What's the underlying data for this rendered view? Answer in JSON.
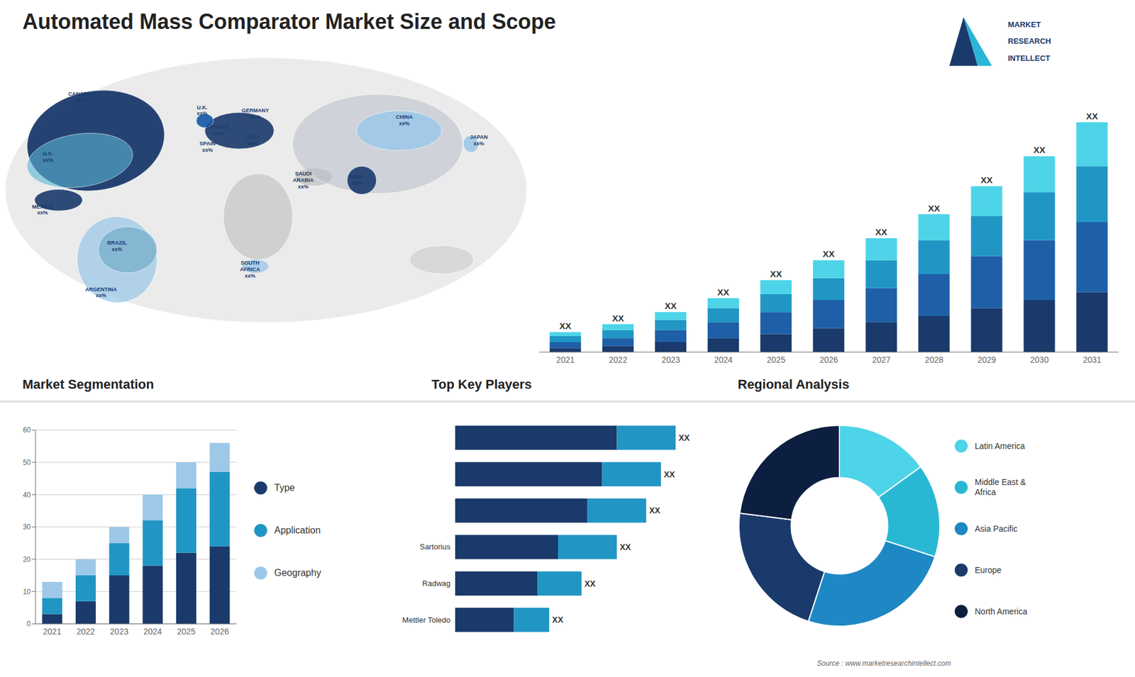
{
  "chart_data": [
    {
      "type": "text",
      "title": "Automated Mass Comparator Market Size and Scope",
      "annotations": [
        "Source : www.marketresearchintellect.com"
      ]
    },
    {
      "type": "map",
      "annotations": [
        "CANADA\nxx%",
        "U.S.\nxx%",
        "MEXICO\nxx%",
        "BRAZIL\nxx%",
        "ARGENTINA\nxx%",
        "U.K.\nxx%",
        "FRANCE\nxx%",
        "SPAIN\nxx%",
        "GERMANY\nxx%",
        "ITALY\nxx%",
        "SAUDI\nARABIA\nxx%",
        "SOUTH\nAFRICA\nxx%",
        "CHINA\nxx%",
        "INDIA\nxx%",
        "JAPAN\nxx%"
      ]
    },
    {
      "type": "bar",
      "categories": [
        "2021",
        "2022",
        "2023",
        "2024",
        "2025",
        "2026",
        "2027",
        "2028",
        "2029",
        "2030",
        "2031"
      ],
      "series": [
        {
          "color": "#1a3a6b",
          "values": [
            2,
            3,
            5,
            7,
            9,
            12,
            15,
            18,
            22,
            26,
            30
          ]
        },
        {
          "color": "#1e5fa8",
          "values": [
            3,
            4,
            6,
            8,
            11,
            14,
            17,
            21,
            26,
            30,
            35
          ]
        },
        {
          "color": "#2196c4",
          "values": [
            3,
            4,
            5,
            7,
            9,
            11,
            14,
            17,
            20,
            24,
            28
          ]
        },
        {
          "color": "#4dd4e8",
          "values": [
            2,
            3,
            4,
            5,
            7,
            9,
            11,
            13,
            15,
            18,
            22
          ]
        }
      ],
      "stacked": true,
      "ylim": [
        0,
        147.2
      ],
      "yticks": [],
      "tick_labels": "x",
      "grid": false,
      "annotations": [
        "XX",
        "XX",
        "XX",
        "XX",
        "XX",
        "XX",
        "XX",
        "XX",
        "XX",
        "XX",
        "XX"
      ]
    },
    {
      "type": "logo",
      "annotations": [
        "MARKET",
        "RESEARCH",
        "INTELLECT"
      ]
    },
    {
      "type": "bar",
      "title": "Market Segmentation",
      "categories": [
        "2021",
        "2022",
        "2023",
        "2024",
        "2025",
        "2026"
      ],
      "series": [
        {
          "name": "Type",
          "color": "#1a3a6b",
          "values": [
            3,
            7,
            15,
            18,
            22,
            24
          ]
        },
        {
          "name": "Application",
          "color": "#2196c4",
          "values": [
            5,
            8,
            10,
            14,
            20,
            23
          ]
        },
        {
          "name": "Geography",
          "color": "#9ec8e8",
          "values": [
            5,
            5,
            5,
            8,
            8,
            9
          ]
        }
      ],
      "stacked": true,
      "ylim": [
        0,
        60
      ],
      "yticks": [
        0,
        10,
        20,
        30,
        40,
        50,
        60
      ],
      "grid": true,
      "legend": "right"
    },
    {
      "type": "bar",
      "title": "Top Key Players",
      "orientation": "horizontal",
      "stacked": true,
      "categories": [
        null,
        null,
        null,
        "Sartorius",
        "Radwag",
        "Mettler Toledo"
      ],
      "series": [
        {
          "color": "#1a3a6b",
          "values": [
            55,
            50,
            45,
            35,
            28,
            20
          ]
        },
        {
          "color": "#2196c4",
          "values": [
            20,
            20,
            20,
            20,
            15,
            12
          ]
        }
      ],
      "xlim": [
        0,
        88.5
      ],
      "xticks": [],
      "tick_labels": "y",
      "grid": false,
      "annotations": [
        "XX",
        "XX",
        "XX",
        "XX",
        "XX",
        "XX"
      ]
    },
    {
      "type": "pie",
      "title": "Regional Analysis",
      "categories": [
        "Latin America",
        "Middle East &\nAfrica",
        "Asia Pacific",
        "Europe",
        "North America"
      ],
      "values": [
        15,
        15,
        25,
        22,
        23
      ],
      "colors": [
        "#4dd4e8",
        "#29b8d4",
        "#1e88c4",
        "#1a3a6b",
        "#0d1f40"
      ],
      "legend": "right"
    }
  ]
}
